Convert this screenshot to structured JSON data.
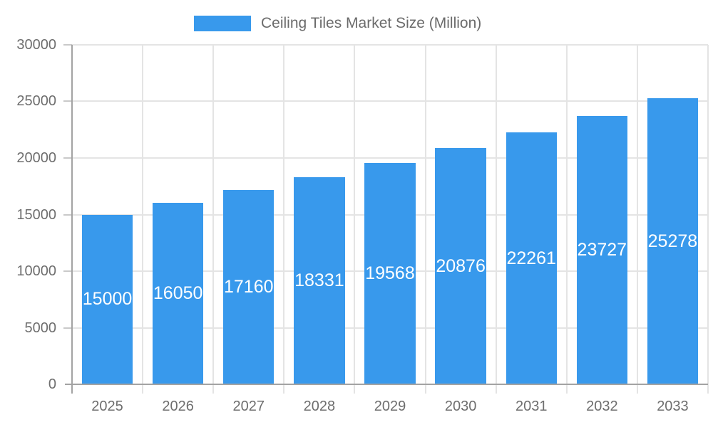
{
  "chart_data": {
    "type": "bar",
    "title": "Ceiling Tiles Market Size (Million)",
    "categories": [
      "2025",
      "2026",
      "2027",
      "2028",
      "2029",
      "2030",
      "2031",
      "2032",
      "2033"
    ],
    "values": [
      15000,
      16050,
      17160,
      18331,
      19568,
      20876,
      22261,
      23727,
      25278
    ],
    "xlabel": "",
    "ylabel": "",
    "ylim": [
      0,
      30000
    ],
    "y_ticks": [
      0,
      5000,
      10000,
      15000,
      20000,
      25000,
      30000
    ],
    "grid": true,
    "legend_position": "top",
    "bar_color": "#3899EC",
    "bar_value_label_color": "#FFFFFF",
    "axis_text_color": "#6E6E6E",
    "grid_color": "#E4E4E4",
    "axis_line_color": "#A3A3A3"
  },
  "legend": {
    "label": "Ceiling Tiles Market Size (Million)",
    "swatch_color": "#3899EC"
  }
}
